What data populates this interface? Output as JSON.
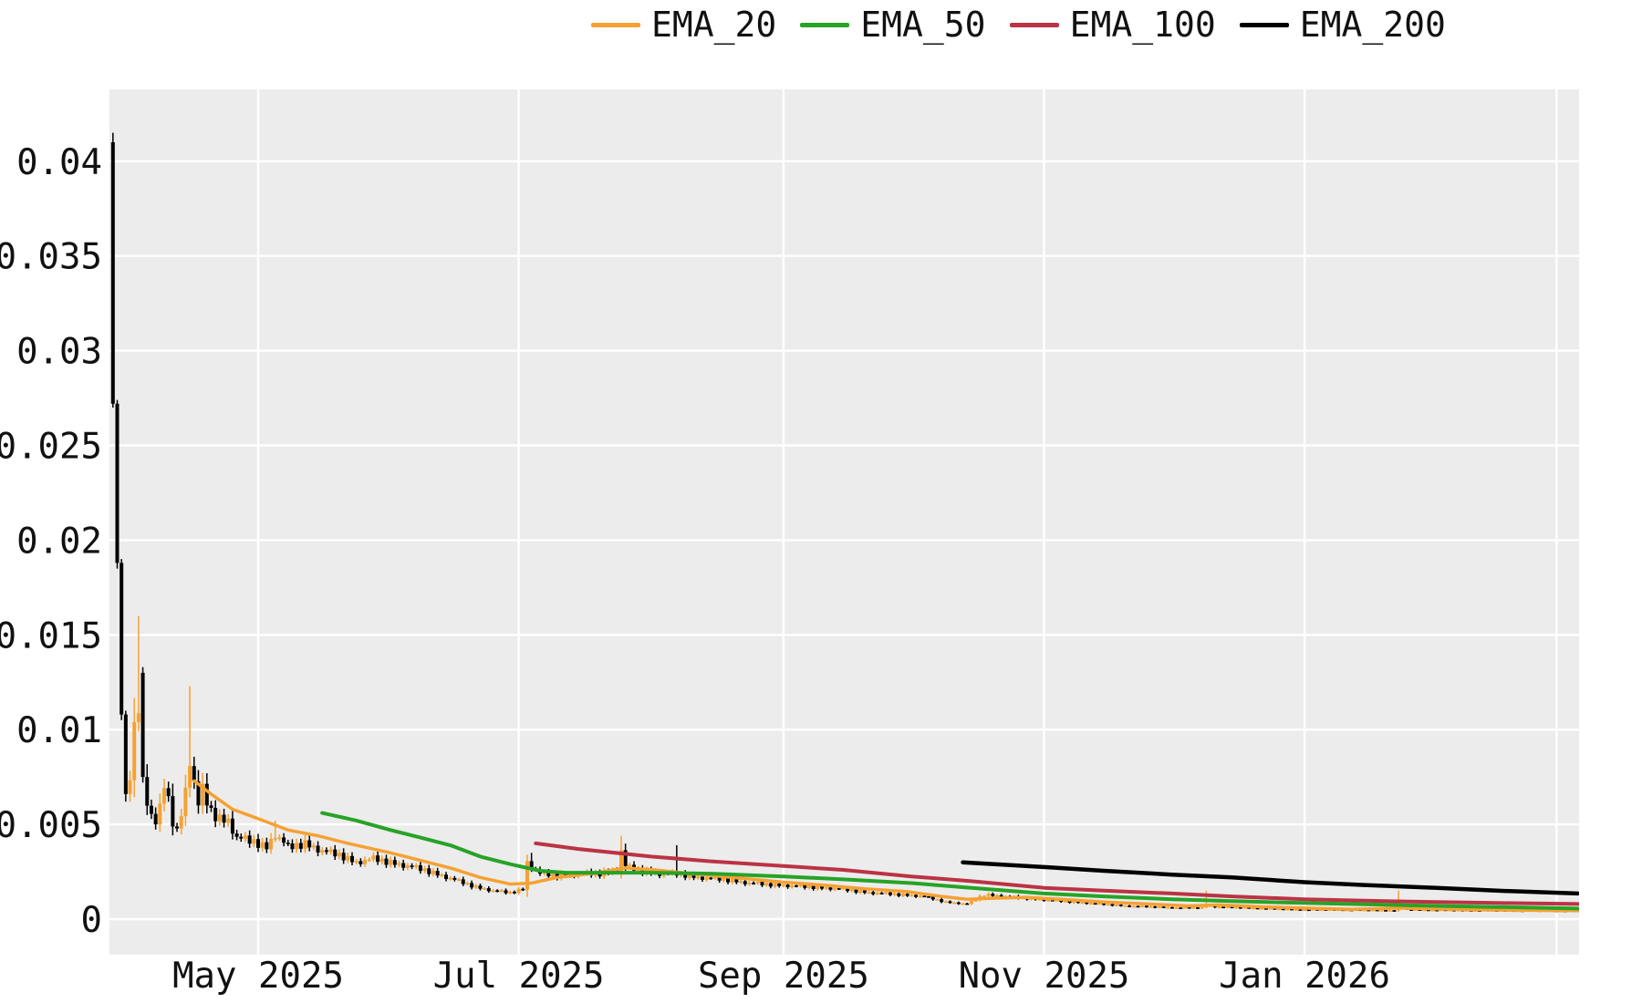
{
  "legend": {
    "items": [
      {
        "label": "EMA_20",
        "color": "#f6a133"
      },
      {
        "label": "EMA_50",
        "color": "#27a327"
      },
      {
        "label": "EMA_100",
        "color": "#bb3344"
      },
      {
        "label": "EMA_200",
        "color": "#000000"
      }
    ]
  },
  "chart_data": {
    "type": "candlestick",
    "title": "",
    "legend_position": "top-center",
    "grid": true,
    "style": {
      "plot_bg": "#ececec",
      "grid_color": "#ffffff",
      "up_color": "#f6a133",
      "down_color": "#000000",
      "tick_color": "#111111"
    },
    "x_axis": {
      "range": [
        "2025-03-28",
        "2026-03-06"
      ],
      "ticks": [
        {
          "label": "May 2025",
          "date": "2025-05-01"
        },
        {
          "label": "Jul 2025",
          "date": "2025-07-01"
        },
        {
          "label": "Sep 2025",
          "date": "2025-09-01"
        },
        {
          "label": "Nov 2025",
          "date": "2025-11-01"
        },
        {
          "label": "Jan 2026",
          "date": "2026-01-01"
        }
      ],
      "unlabeled_gridlines": [
        "2026-03-01"
      ]
    },
    "y_axis": {
      "range": [
        -0.0019,
        0.0438
      ],
      "ticks": [
        {
          "label": "0",
          "value": 0
        },
        {
          "label": "0.005",
          "value": 0.005
        },
        {
          "label": "0.01",
          "value": 0.01
        },
        {
          "label": "0.015",
          "value": 0.015
        },
        {
          "label": "0.02",
          "value": 0.02
        },
        {
          "label": "0.025",
          "value": 0.025
        },
        {
          "label": "0.03",
          "value": 0.03
        },
        {
          "label": "0.035",
          "value": 0.035
        },
        {
          "label": "0.04",
          "value": 0.04
        }
      ]
    },
    "candles": {
      "start_date": "2025-03-28",
      "days": 344,
      "explicit": [
        [
          "2025-03-28",
          [
            0.041,
            0.0415,
            0.027,
            0.0272
          ]
        ],
        [
          "2025-03-29",
          [
            0.0272,
            0.0274,
            0.0185,
            0.0188
          ]
        ],
        [
          "2025-03-30",
          [
            0.0188,
            0.019,
            0.0105,
            0.0108
          ]
        ],
        [
          "2025-03-31",
          [
            0.0108,
            0.011,
            0.0062,
            0.0066
          ]
        ],
        [
          "2025-04-04",
          [
            0.013,
            0.0133,
            0.0072,
            0.0075
          ]
        ]
      ],
      "close_path": [
        [
          "2025-03-31",
          0.0066
        ],
        [
          "2025-04-01",
          0.0078
        ],
        [
          "2025-04-02",
          0.01
        ],
        [
          "2025-04-03",
          0.0112
        ],
        [
          "2025-04-04",
          0.0075
        ],
        [
          "2025-04-05",
          0.0063
        ],
        [
          "2025-04-06",
          0.0055
        ],
        [
          "2025-04-07",
          0.005
        ],
        [
          "2025-04-08",
          0.0058
        ],
        [
          "2025-04-09",
          0.0072
        ],
        [
          "2025-04-10",
          0.0063
        ],
        [
          "2025-04-11",
          0.0052
        ],
        [
          "2025-04-12",
          0.0046
        ],
        [
          "2025-04-13",
          0.0056
        ],
        [
          "2025-04-14",
          0.0068
        ],
        [
          "2025-04-15",
          0.0085
        ],
        [
          "2025-04-16",
          0.0072
        ],
        [
          "2025-04-17",
          0.006
        ],
        [
          "2025-04-18",
          0.0068
        ],
        [
          "2025-04-20",
          0.0057
        ],
        [
          "2025-04-22",
          0.0053
        ],
        [
          "2025-04-24",
          0.0052
        ],
        [
          "2025-04-26",
          0.0043
        ],
        [
          "2025-04-28",
          0.0042
        ],
        [
          "2025-04-30",
          0.0041
        ],
        [
          "2025-05-03",
          0.0038
        ],
        [
          "2025-05-05",
          0.0045
        ],
        [
          "2025-05-08",
          0.0038
        ],
        [
          "2025-05-12",
          0.004
        ],
        [
          "2025-05-16",
          0.0036
        ],
        [
          "2025-05-20",
          0.0034
        ],
        [
          "2025-05-24",
          0.003
        ],
        [
          "2025-05-28",
          0.0032
        ],
        [
          "2025-06-01",
          0.003
        ],
        [
          "2025-06-05",
          0.0028
        ],
        [
          "2025-06-09",
          0.0026
        ],
        [
          "2025-06-13",
          0.0023
        ],
        [
          "2025-06-17",
          0.002
        ],
        [
          "2025-06-21",
          0.0017
        ],
        [
          "2025-06-25",
          0.0015
        ],
        [
          "2025-06-29",
          0.0014
        ],
        [
          "2025-07-02",
          0.0016
        ],
        [
          "2025-07-03",
          0.003
        ],
        [
          "2025-07-04",
          0.0028
        ],
        [
          "2025-07-06",
          0.0024
        ],
        [
          "2025-07-10",
          0.0023
        ],
        [
          "2025-07-15",
          0.0024
        ],
        [
          "2025-07-20",
          0.0024
        ],
        [
          "2025-07-24",
          0.0026
        ],
        [
          "2025-07-25",
          0.0036
        ],
        [
          "2025-07-26",
          0.0028
        ],
        [
          "2025-07-29",
          0.0026
        ],
        [
          "2025-08-03",
          0.0024
        ],
        [
          "2025-08-07",
          0.0024
        ],
        [
          "2025-08-12",
          0.0022
        ],
        [
          "2025-08-18",
          0.0021
        ],
        [
          "2025-08-24",
          0.0019
        ],
        [
          "2025-08-31",
          0.0018
        ],
        [
          "2025-09-07",
          0.0017
        ],
        [
          "2025-09-14",
          0.0016
        ],
        [
          "2025-09-21",
          0.0014
        ],
        [
          "2025-09-28",
          0.0013
        ],
        [
          "2025-10-04",
          0.0012
        ],
        [
          "2025-10-09",
          0.0009
        ],
        [
          "2025-10-14",
          0.0008
        ],
        [
          "2025-10-18",
          0.0013
        ],
        [
          "2025-10-23",
          0.0012
        ],
        [
          "2025-10-28",
          0.0011
        ],
        [
          "2025-11-02",
          0.001
        ],
        [
          "2025-11-08",
          0.0009
        ],
        [
          "2025-11-14",
          0.0008
        ],
        [
          "2025-11-20",
          0.0007
        ],
        [
          "2025-11-26",
          0.00065
        ],
        [
          "2025-12-02",
          0.0006
        ],
        [
          "2025-12-08",
          0.0006
        ],
        [
          "2025-12-09",
          0.0008
        ],
        [
          "2025-12-11",
          0.00065
        ],
        [
          "2025-12-18",
          0.0006
        ],
        [
          "2025-12-24",
          0.00055
        ],
        [
          "2025-12-31",
          0.0005
        ],
        [
          "2026-01-07",
          0.0005
        ],
        [
          "2026-01-14",
          0.00048
        ],
        [
          "2026-01-22",
          0.00046
        ],
        [
          "2026-01-23",
          0.0007
        ],
        [
          "2026-01-25",
          0.0005
        ],
        [
          "2026-02-01",
          0.00048
        ],
        [
          "2026-02-10",
          0.00046
        ],
        [
          "2026-02-18",
          0.00045
        ],
        [
          "2026-02-26",
          0.00044
        ],
        [
          "2026-03-06",
          0.00043
        ]
      ],
      "spike_highs": [
        [
          "2025-04-03",
          0.016
        ],
        [
          "2025-04-15",
          0.0123
        ],
        [
          "2025-05-05",
          0.0052
        ],
        [
          "2025-07-03",
          0.0034
        ],
        [
          "2025-07-04",
          0.0035
        ],
        [
          "2025-07-25",
          0.0044
        ],
        [
          "2025-08-07",
          0.0039
        ],
        [
          "2025-12-09",
          0.0015
        ],
        [
          "2026-01-23",
          0.0015
        ]
      ]
    },
    "series": [
      {
        "name": "EMA_20",
        "color": "#f6a133",
        "width": 3.5,
        "points": [
          [
            "2025-04-16",
            0.0073
          ],
          [
            "2025-04-20",
            0.0066
          ],
          [
            "2025-04-25",
            0.0058
          ],
          [
            "2025-05-01",
            0.0053
          ],
          [
            "2025-05-08",
            0.0047
          ],
          [
            "2025-05-15",
            0.0044
          ],
          [
            "2025-05-22",
            0.004
          ],
          [
            "2025-06-01",
            0.0035
          ],
          [
            "2025-06-08",
            0.0031
          ],
          [
            "2025-06-15",
            0.0027
          ],
          [
            "2025-06-22",
            0.0022
          ],
          [
            "2025-06-29",
            0.00185
          ],
          [
            "2025-07-04",
            0.0019
          ],
          [
            "2025-07-10",
            0.0022
          ],
          [
            "2025-07-18",
            0.0024
          ],
          [
            "2025-07-26",
            0.0027
          ],
          [
            "2025-08-02",
            0.0026
          ],
          [
            "2025-08-10",
            0.0024
          ],
          [
            "2025-08-20",
            0.0022
          ],
          [
            "2025-09-01",
            0.00195
          ],
          [
            "2025-09-10",
            0.0018
          ],
          [
            "2025-09-20",
            0.0016
          ],
          [
            "2025-09-30",
            0.00145
          ],
          [
            "2025-10-08",
            0.0012
          ],
          [
            "2025-10-14",
            0.00105
          ],
          [
            "2025-10-20",
            0.0011
          ],
          [
            "2025-10-28",
            0.00115
          ],
          [
            "2025-11-05",
            0.00105
          ],
          [
            "2025-11-15",
            0.0009
          ],
          [
            "2025-11-25",
            0.0008
          ],
          [
            "2025-12-05",
            0.0007
          ],
          [
            "2025-12-12",
            0.00075
          ],
          [
            "2025-12-22",
            0.00065
          ],
          [
            "2026-01-01",
            0.00058
          ],
          [
            "2026-01-12",
            0.00052
          ],
          [
            "2026-01-23",
            0.00058
          ],
          [
            "2026-01-31",
            0.00055
          ],
          [
            "2026-02-10",
            0.0005
          ],
          [
            "2026-02-20",
            0.00047
          ],
          [
            "2026-03-06",
            0.00045
          ]
        ]
      },
      {
        "name": "EMA_50",
        "color": "#27a327",
        "width": 4,
        "points": [
          [
            "2025-05-16",
            0.0056
          ],
          [
            "2025-05-24",
            0.0052
          ],
          [
            "2025-06-01",
            0.0047
          ],
          [
            "2025-06-08",
            0.0043
          ],
          [
            "2025-06-15",
            0.0039
          ],
          [
            "2025-06-22",
            0.0033
          ],
          [
            "2025-06-29",
            0.0029
          ],
          [
            "2025-07-06",
            0.00255
          ],
          [
            "2025-07-12",
            0.00245
          ],
          [
            "2025-07-20",
            0.00245
          ],
          [
            "2025-08-01",
            0.00245
          ],
          [
            "2025-08-15",
            0.0024
          ],
          [
            "2025-09-01",
            0.00225
          ],
          [
            "2025-09-15",
            0.0021
          ],
          [
            "2025-10-01",
            0.0019
          ],
          [
            "2025-10-15",
            0.00165
          ],
          [
            "2025-11-01",
            0.00135
          ],
          [
            "2025-11-15",
            0.0012
          ],
          [
            "2025-12-01",
            0.00105
          ],
          [
            "2025-12-15",
            0.00095
          ],
          [
            "2026-01-01",
            0.00085
          ],
          [
            "2026-01-15",
            0.00078
          ],
          [
            "2026-02-01",
            0.0007
          ],
          [
            "2026-02-15",
            0.00064
          ],
          [
            "2026-03-06",
            0.00056
          ]
        ]
      },
      {
        "name": "EMA_100",
        "color": "#bb3344",
        "width": 4,
        "points": [
          [
            "2025-07-05",
            0.004
          ],
          [
            "2025-07-15",
            0.0037
          ],
          [
            "2025-08-01",
            0.0033
          ],
          [
            "2025-08-15",
            0.00305
          ],
          [
            "2025-09-01",
            0.0028
          ],
          [
            "2025-09-15",
            0.0026
          ],
          [
            "2025-10-01",
            0.00225
          ],
          [
            "2025-10-15",
            0.002
          ],
          [
            "2025-11-01",
            0.00165
          ],
          [
            "2025-11-15",
            0.0015
          ],
          [
            "2025-12-01",
            0.00135
          ],
          [
            "2025-12-15",
            0.0012
          ],
          [
            "2026-01-01",
            0.00105
          ],
          [
            "2026-01-15",
            0.00097
          ],
          [
            "2026-02-01",
            0.0009
          ],
          [
            "2026-02-15",
            0.00085
          ],
          [
            "2026-03-06",
            0.0008
          ]
        ]
      },
      {
        "name": "EMA_200",
        "color": "#000000",
        "width": 4.5,
        "points": [
          [
            "2025-10-13",
            0.003
          ],
          [
            "2025-11-01",
            0.00275
          ],
          [
            "2025-11-15",
            0.00255
          ],
          [
            "2025-12-01",
            0.00235
          ],
          [
            "2025-12-15",
            0.0022
          ],
          [
            "2026-01-01",
            0.00195
          ],
          [
            "2026-01-15",
            0.0018
          ],
          [
            "2026-02-01",
            0.00165
          ],
          [
            "2026-02-15",
            0.0015
          ],
          [
            "2026-03-06",
            0.00135
          ]
        ]
      }
    ]
  }
}
